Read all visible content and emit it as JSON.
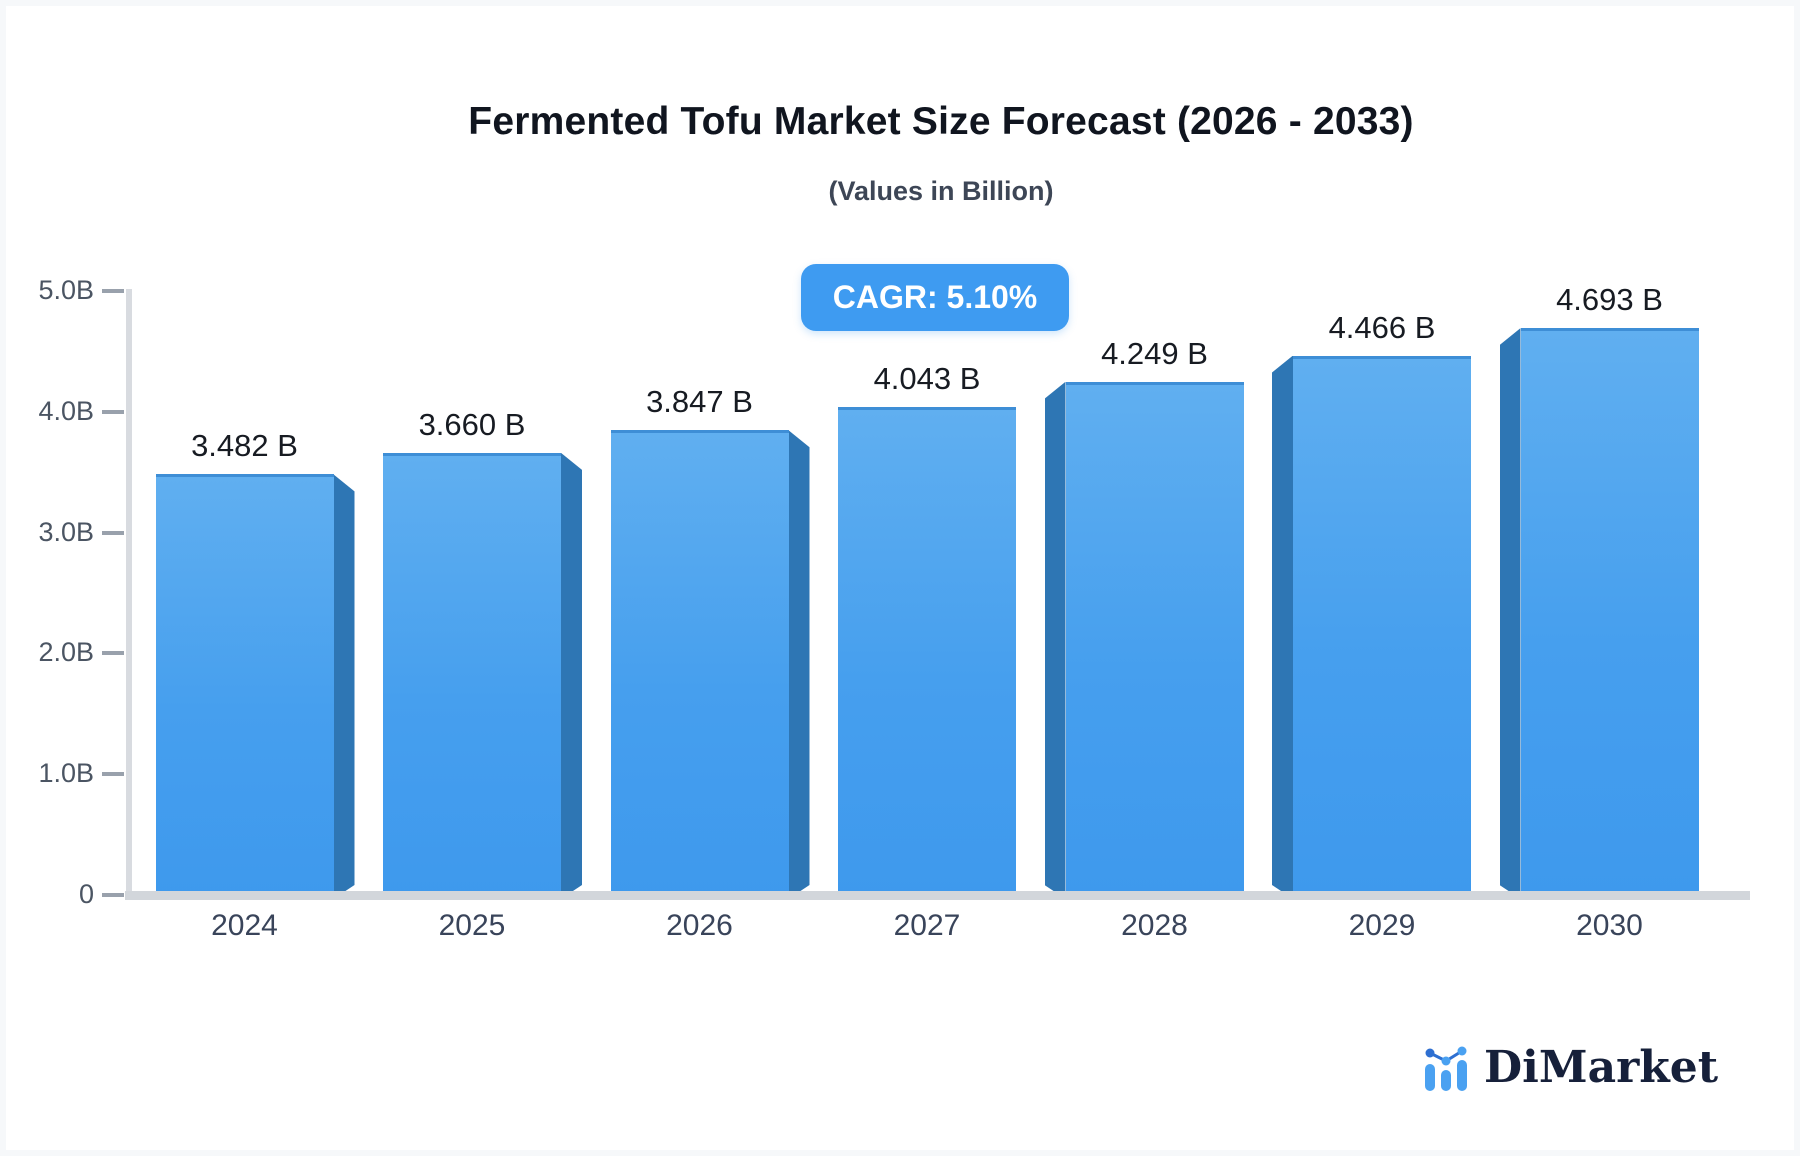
{
  "header": {
    "title": "Fermented Tofu Market Size Forecast (2026 - 2033)",
    "subtitle": "(Values in Billion)"
  },
  "badge": {
    "label": "CAGR: 5.10%",
    "color": "#3e9bf1"
  },
  "chart_data": {
    "type": "bar",
    "title": "Fermented Tofu Market Size Forecast (2026 - 2033)",
    "subtitle": "(Values in Billion)",
    "categories": [
      "2024",
      "2025",
      "2026",
      "2027",
      "2028",
      "2029",
      "2030"
    ],
    "values": [
      3.482,
      3.66,
      3.847,
      4.043,
      4.249,
      4.466,
      4.693
    ],
    "value_labels": [
      "3.482 B",
      "3.660 B",
      "3.847 B",
      "4.043 B",
      "4.249 B",
      "4.466 B",
      "4.693 B"
    ],
    "y_ticks": [
      {
        "label": "5.0B",
        "value": 5.0
      },
      {
        "label": "4.0B",
        "value": 4.0
      },
      {
        "label": "3.0B",
        "value": 3.0
      },
      {
        "label": "2.0B",
        "value": 2.0
      },
      {
        "label": "1.0B",
        "value": 1.0
      },
      {
        "label": "0",
        "value": 0.0
      }
    ],
    "ylim": [
      0,
      5
    ],
    "grid": false,
    "legend": false,
    "bar_color_top": "#60aff0",
    "bar_color_bottom": "#3e99ed",
    "bar_side_color": "#2e76b4",
    "annotation": "CAGR: 5.10%"
  },
  "logo": {
    "text": "DiMarket",
    "icon": "mini-bar-chart-icon",
    "text_color": "#16203a",
    "accent_color": "#4aa1f1"
  }
}
